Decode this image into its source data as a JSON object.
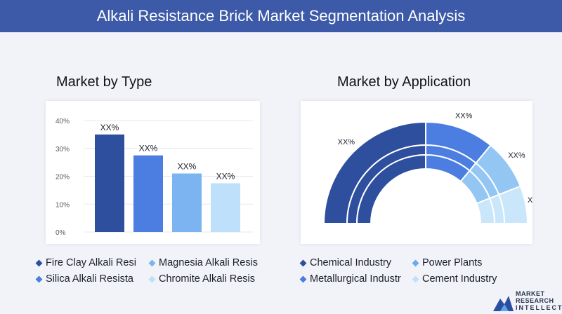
{
  "header": {
    "title": "Alkali Resistance Brick Market Segmentation Analysis"
  },
  "sections": {
    "type_title": "Market by Type",
    "application_title": "Market by Application"
  },
  "chart_data": [
    {
      "type": "bar",
      "title": "Market by Type",
      "categories": [
        "Fire Clay Alkali Resi",
        "Magnesia Alkali Resis",
        "Silica Alkali Resista",
        "Chromite Alkali Resis"
      ],
      "values": [
        35,
        27.5,
        21,
        17.5
      ],
      "data_labels": [
        "XX%",
        "XX%",
        "XX%",
        "XX%"
      ],
      "colors": [
        "#2e4f9e",
        "#4b7ee0",
        "#7bb4f0",
        "#bfe0fa"
      ],
      "ylim": [
        0,
        40
      ],
      "yticks": [
        "0%",
        "10%",
        "20%",
        "30%",
        "40%"
      ],
      "grid": true
    },
    {
      "type": "pie",
      "title": "Market by Application",
      "categories": [
        "Chemical Industry",
        "Power Plants",
        "Metallurgical Industr",
        "Cement Industry"
      ],
      "values": [
        50,
        22,
        16,
        12
      ],
      "data_labels": [
        "XX%",
        "XX%",
        "XX%",
        "XX%"
      ],
      "colors": [
        "#2e4f9e",
        "#4b7ee0",
        "#93c6f2",
        "#c9e6fb"
      ],
      "shape": "semi-donut"
    }
  ],
  "legend_type": [
    {
      "label": "Fire Clay Alkali Resi",
      "color": "#2e4f9e"
    },
    {
      "label": "Magnesia Alkali Resis",
      "color": "#7bb4f0"
    },
    {
      "label": "Silica Alkali Resista",
      "color": "#4b7ee0"
    },
    {
      "label": "Chromite Alkali Resis",
      "color": "#bfe0fa"
    }
  ],
  "legend_application": [
    {
      "label": "Chemical Industry",
      "color": "#2e4f9e"
    },
    {
      "label": "Power Plants",
      "color": "#6aaaf0"
    },
    {
      "label": "Metallurgical Industr",
      "color": "#4b7ee0"
    },
    {
      "label": "Cement Industry",
      "color": "#bfe0fa"
    }
  ],
  "logo": {
    "line1": "MARKET",
    "line2": "RESEARCH",
    "line3": "INTELLECT"
  }
}
